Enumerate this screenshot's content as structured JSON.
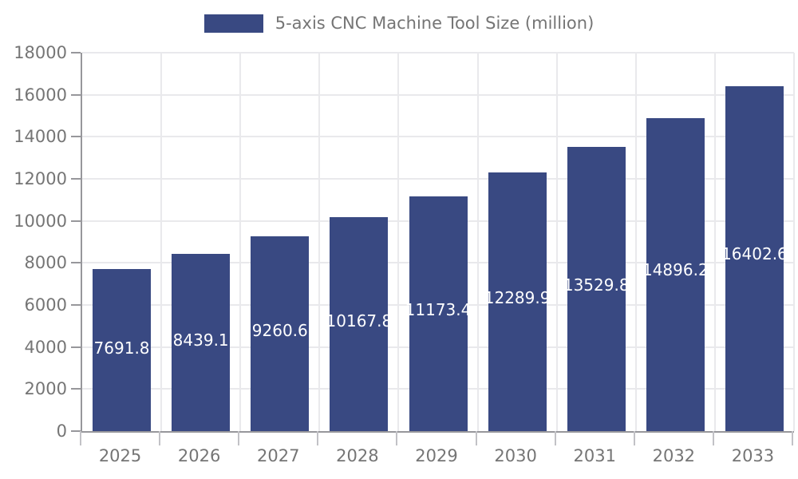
{
  "chart_data": {
    "type": "bar",
    "title": "5-axis CNC Machine Tool Size (million)",
    "legend": [
      "5-axis CNC Machine Tool Size (million)"
    ],
    "legend_position": "top-center",
    "categories": [
      "2025",
      "2026",
      "2027",
      "2028",
      "2029",
      "2030",
      "2031",
      "2032",
      "2033"
    ],
    "values": [
      7691.8,
      8439.1,
      9260.6,
      10167.8,
      11173.4,
      12289.9,
      13529.8,
      14896.2,
      16402.6
    ],
    "value_labels": [
      "7691.8",
      "8439.1",
      "9260.6",
      "10167.8",
      "11173.4",
      "12289.9",
      "13529.8",
      "14896.2",
      "16402.6"
    ],
    "xlabel": "",
    "ylabel": "",
    "ylim": [
      0,
      18000
    ],
    "yticks": [
      0,
      2000,
      4000,
      6000,
      8000,
      10000,
      12000,
      14000,
      16000,
      18000
    ],
    "grid": true,
    "colors": {
      "bar": "#394982",
      "value_label": "#ffffff",
      "axis_line": "#97979b",
      "gridline": "#e9e9ec",
      "tick_text": "#757575"
    }
  }
}
